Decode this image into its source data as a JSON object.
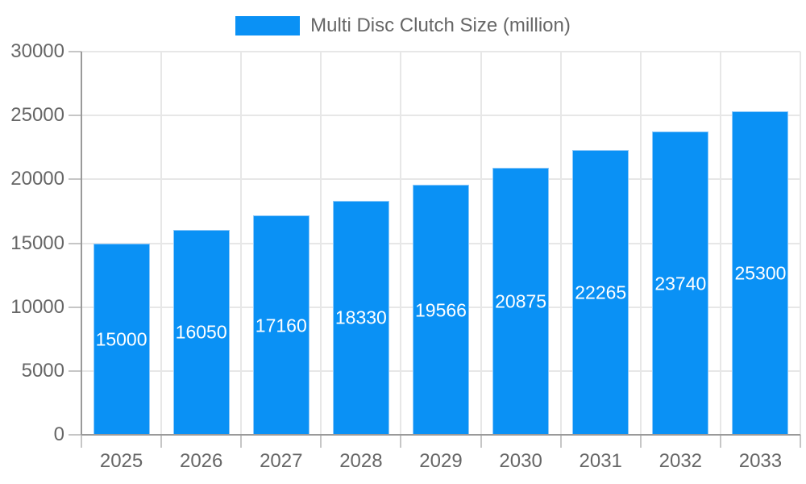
{
  "legend": {
    "label": "Multi Disc Clutch Size (million)"
  },
  "chart_data": {
    "type": "bar",
    "title": "",
    "categories": [
      "2025",
      "2026",
      "2027",
      "2028",
      "2029",
      "2030",
      "2031",
      "2032",
      "2033"
    ],
    "series": [
      {
        "name": "Multi Disc Clutch Size (million)",
        "values": [
          15000,
          16050,
          17160,
          18330,
          19566,
          20875,
          22265,
          23740,
          25300
        ]
      }
    ],
    "xlabel": "",
    "ylabel": "",
    "ylim": [
      0,
      30000
    ],
    "yticks": [
      0,
      5000,
      10000,
      15000,
      20000,
      25000,
      30000
    ],
    "grid": "on",
    "legend_position": "top-center",
    "data_labels": "inside-center",
    "colors": {
      "bar": "#0a91f5",
      "bar_edge": "#8ec9f9",
      "data_label": "#ffffff",
      "grid_line": "#e7e7e7",
      "axis_line": "#9a9a9a",
      "tick_mark": "#c6c6c6",
      "tick_text": "#666666",
      "legend_text": "#666666",
      "background": "#ffffff"
    }
  }
}
